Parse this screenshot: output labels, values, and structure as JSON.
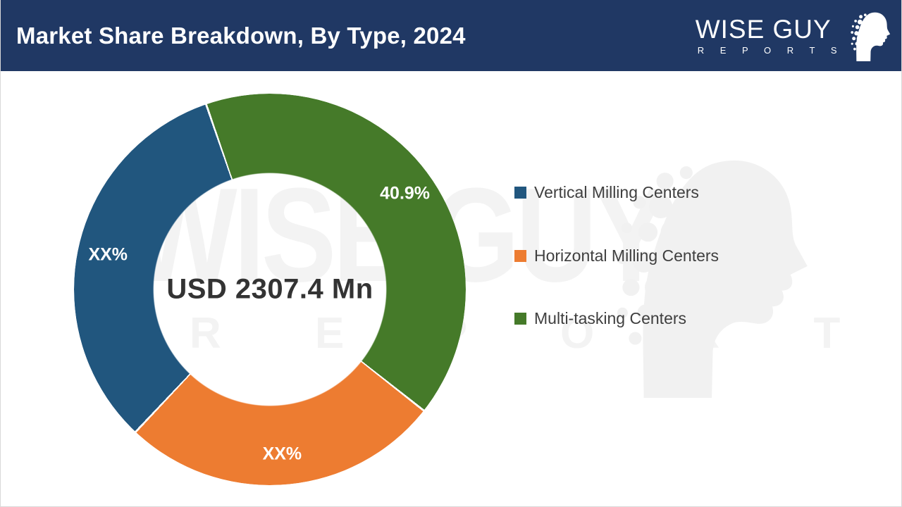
{
  "header": {
    "title": "Market Share Breakdown, By Type, 2024",
    "logo": {
      "name": "WISE GUY",
      "sub": "R E P O R T S"
    }
  },
  "watermark": {
    "big_text": "WISE GUY",
    "sub_text": "R E P O R T S"
  },
  "chart_data": {
    "type": "pie",
    "subtype": "donut",
    "title": "Market Share Breakdown, By Type, 2024",
    "center_label": "USD 2307.4 Mn",
    "start_angle_deg": -19,
    "hole_ratio": 0.59,
    "legend_position": "right",
    "segments": [
      {
        "name": "Multi-tasking Centers",
        "value": 40.9,
        "display": "40.9%",
        "color": "#457A29"
      },
      {
        "name": "Horizontal Milling Centers",
        "value": 26.4,
        "display": "XX%",
        "color": "#ED7C31"
      },
      {
        "name": "Vertical Milling Centers",
        "value": 32.7,
        "display": "XX%",
        "color": "#21567E"
      }
    ]
  },
  "legend": {
    "items": [
      {
        "label": "Vertical Milling Centers",
        "color": "#21567E"
      },
      {
        "label": "Horizontal Milling Centers",
        "color": "#ED7C31"
      },
      {
        "label": "Multi-tasking Centers",
        "color": "#457A29"
      }
    ]
  },
  "colors": {
    "header_bg": "#203864",
    "legend_text": "#3F3F3F",
    "center_text": "#333333",
    "watermark": "#F3F3F3",
    "border": "#D9D9D9"
  }
}
